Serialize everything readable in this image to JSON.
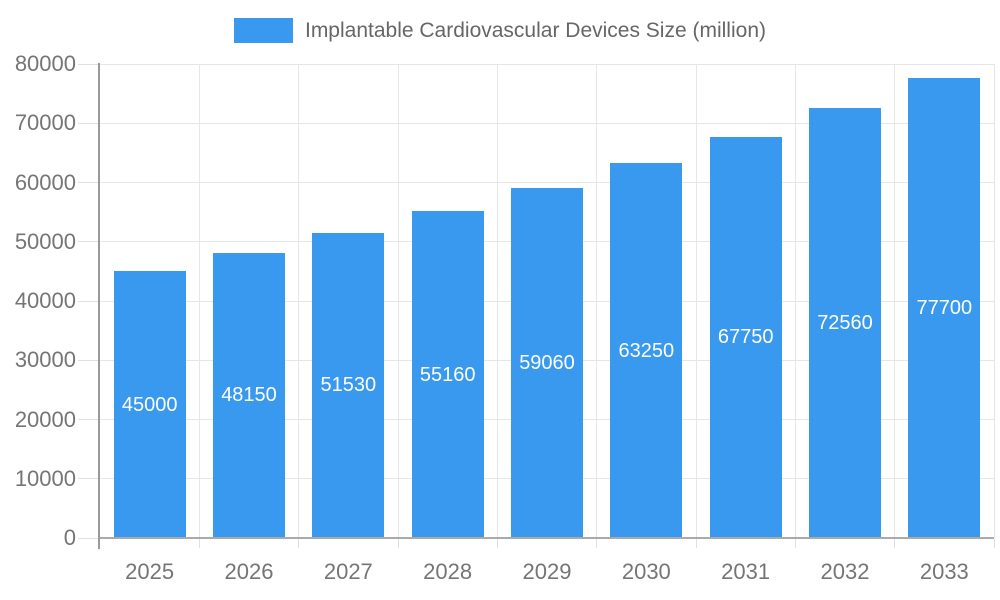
{
  "legend": {
    "label": "Implantable Cardiovascular Devices Size (million)"
  },
  "colors": {
    "bar": "#3899EF",
    "y_axis_line": "#999999",
    "x_axis_line": "#AAAAAA",
    "gridline": "#E6E6E6",
    "tick": "#E0E0E0",
    "axis_label_text": "#757575",
    "legend_text": "#666666",
    "value_label_text": "#FFFFFF",
    "background": "#FFFFFF"
  },
  "chart_data": {
    "type": "bar",
    "title": "",
    "xlabel": "",
    "ylabel": "",
    "categories": [
      "2025",
      "2026",
      "2027",
      "2028",
      "2029",
      "2030",
      "2031",
      "2032",
      "2033"
    ],
    "series": [
      {
        "name": "Implantable Cardiovascular Devices Size (million)",
        "values": [
          45000,
          48150,
          51530,
          55160,
          59060,
          63250,
          67750,
          72560,
          77700
        ]
      }
    ],
    "ylim": [
      0,
      80000
    ],
    "ytick_step": 10000,
    "ytick_labels": [
      "0",
      "10000",
      "20000",
      "30000",
      "40000",
      "50000",
      "60000",
      "70000",
      "80000"
    ],
    "grid": true,
    "legend_position": "top-center",
    "value_labels": "inside-center"
  }
}
